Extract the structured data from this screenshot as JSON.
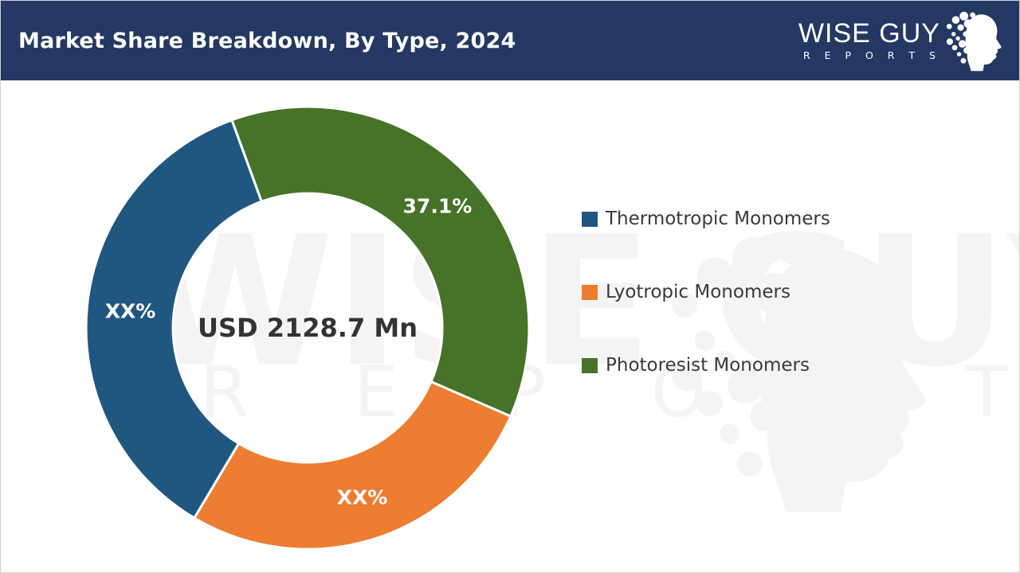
{
  "header": {
    "title": "Market Share Breakdown, By Type, 2024",
    "bg_color": "#233862",
    "logo": {
      "line1": "WISE GUY",
      "line2": "R E P O R T S"
    }
  },
  "watermark": {
    "line1": "WISE GUY",
    "line2": "REPORTS"
  },
  "chart_data": {
    "type": "donut",
    "title": "Market Share Breakdown, By Type, 2024",
    "center_label": "USD 2128.7 Mn",
    "start_angle_deg": -20,
    "hole_ratio": 0.607,
    "slices": [
      {
        "name": "Photoresist Monomers",
        "label": "37.1%",
        "value_pct": 37.1,
        "color": "#467328"
      },
      {
        "name": "Lyotropic Monomers",
        "label": "XX%",
        "value_pct": 27.0,
        "color": "#ed7d31"
      },
      {
        "name": "Thermotropic Monomers",
        "label": "XX%",
        "value_pct": 35.9,
        "color": "#205781"
      }
    ],
    "legend": [
      {
        "label": "Thermotropic Monomers",
        "color": "#205781"
      },
      {
        "label": "Lyotropic Monomers",
        "color": "#ed7d31"
      },
      {
        "label": "Photoresist Monomers",
        "color": "#467328"
      }
    ],
    "legend_position": "right"
  }
}
